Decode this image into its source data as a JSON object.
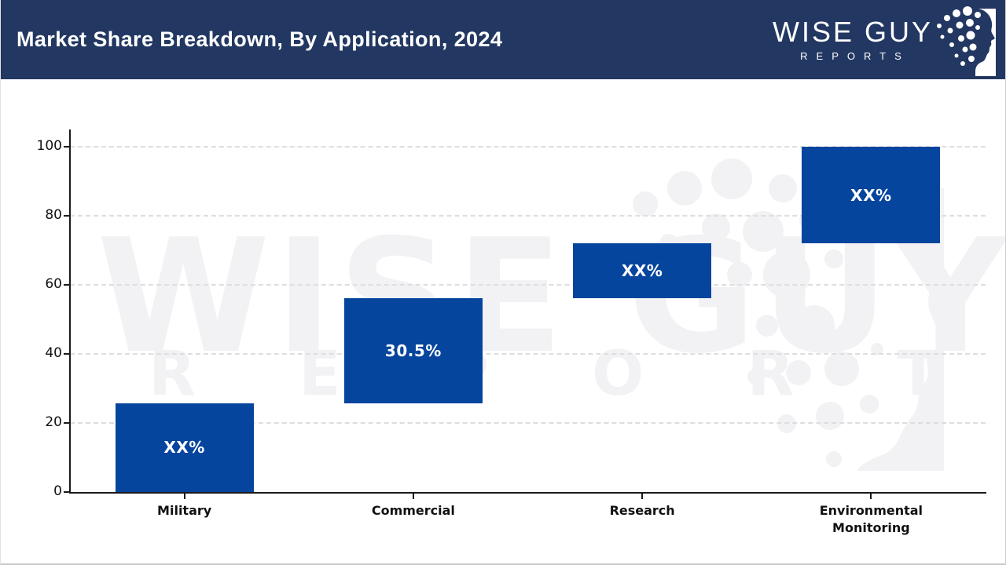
{
  "header": {
    "title": "Market Share Breakdown, By Application, 2024",
    "logo": {
      "line1": "WISE GUY",
      "line2": "REPORTS"
    }
  },
  "watermark": {
    "line1": "WISE GUY",
    "line2": "R E P O R T S"
  },
  "colors": {
    "header_bg": "#223761",
    "bar": "#05459e",
    "grid": "#dedee0",
    "axis": "#1a1a1a",
    "watermark": "#f2f2f4",
    "bar_label_text": "#ffffff"
  },
  "chart_data": {
    "type": "bar",
    "subtype": "floating-waterfall",
    "title": "Market Share Breakdown, By Application, 2024",
    "categories": [
      "Military",
      "Commercial",
      "Research",
      "Environmental Monitoring"
    ],
    "segments": [
      [
        0,
        25.7
      ],
      [
        25.7,
        56.2
      ],
      [
        56.2,
        72.0
      ],
      [
        72.0,
        100
      ]
    ],
    "values": [
      25.7,
      30.5,
      15.8,
      28.0
    ],
    "bar_labels": [
      "XX%",
      "30.5%",
      "XX%",
      "XX%"
    ],
    "y_ticks": [
      0,
      20,
      40,
      60,
      80,
      100
    ],
    "ylim": [
      0,
      105
    ],
    "xlabel": "",
    "ylabel": "",
    "grid": "horizontal-dashed",
    "legend": "none",
    "bar_color": "#05459e"
  }
}
